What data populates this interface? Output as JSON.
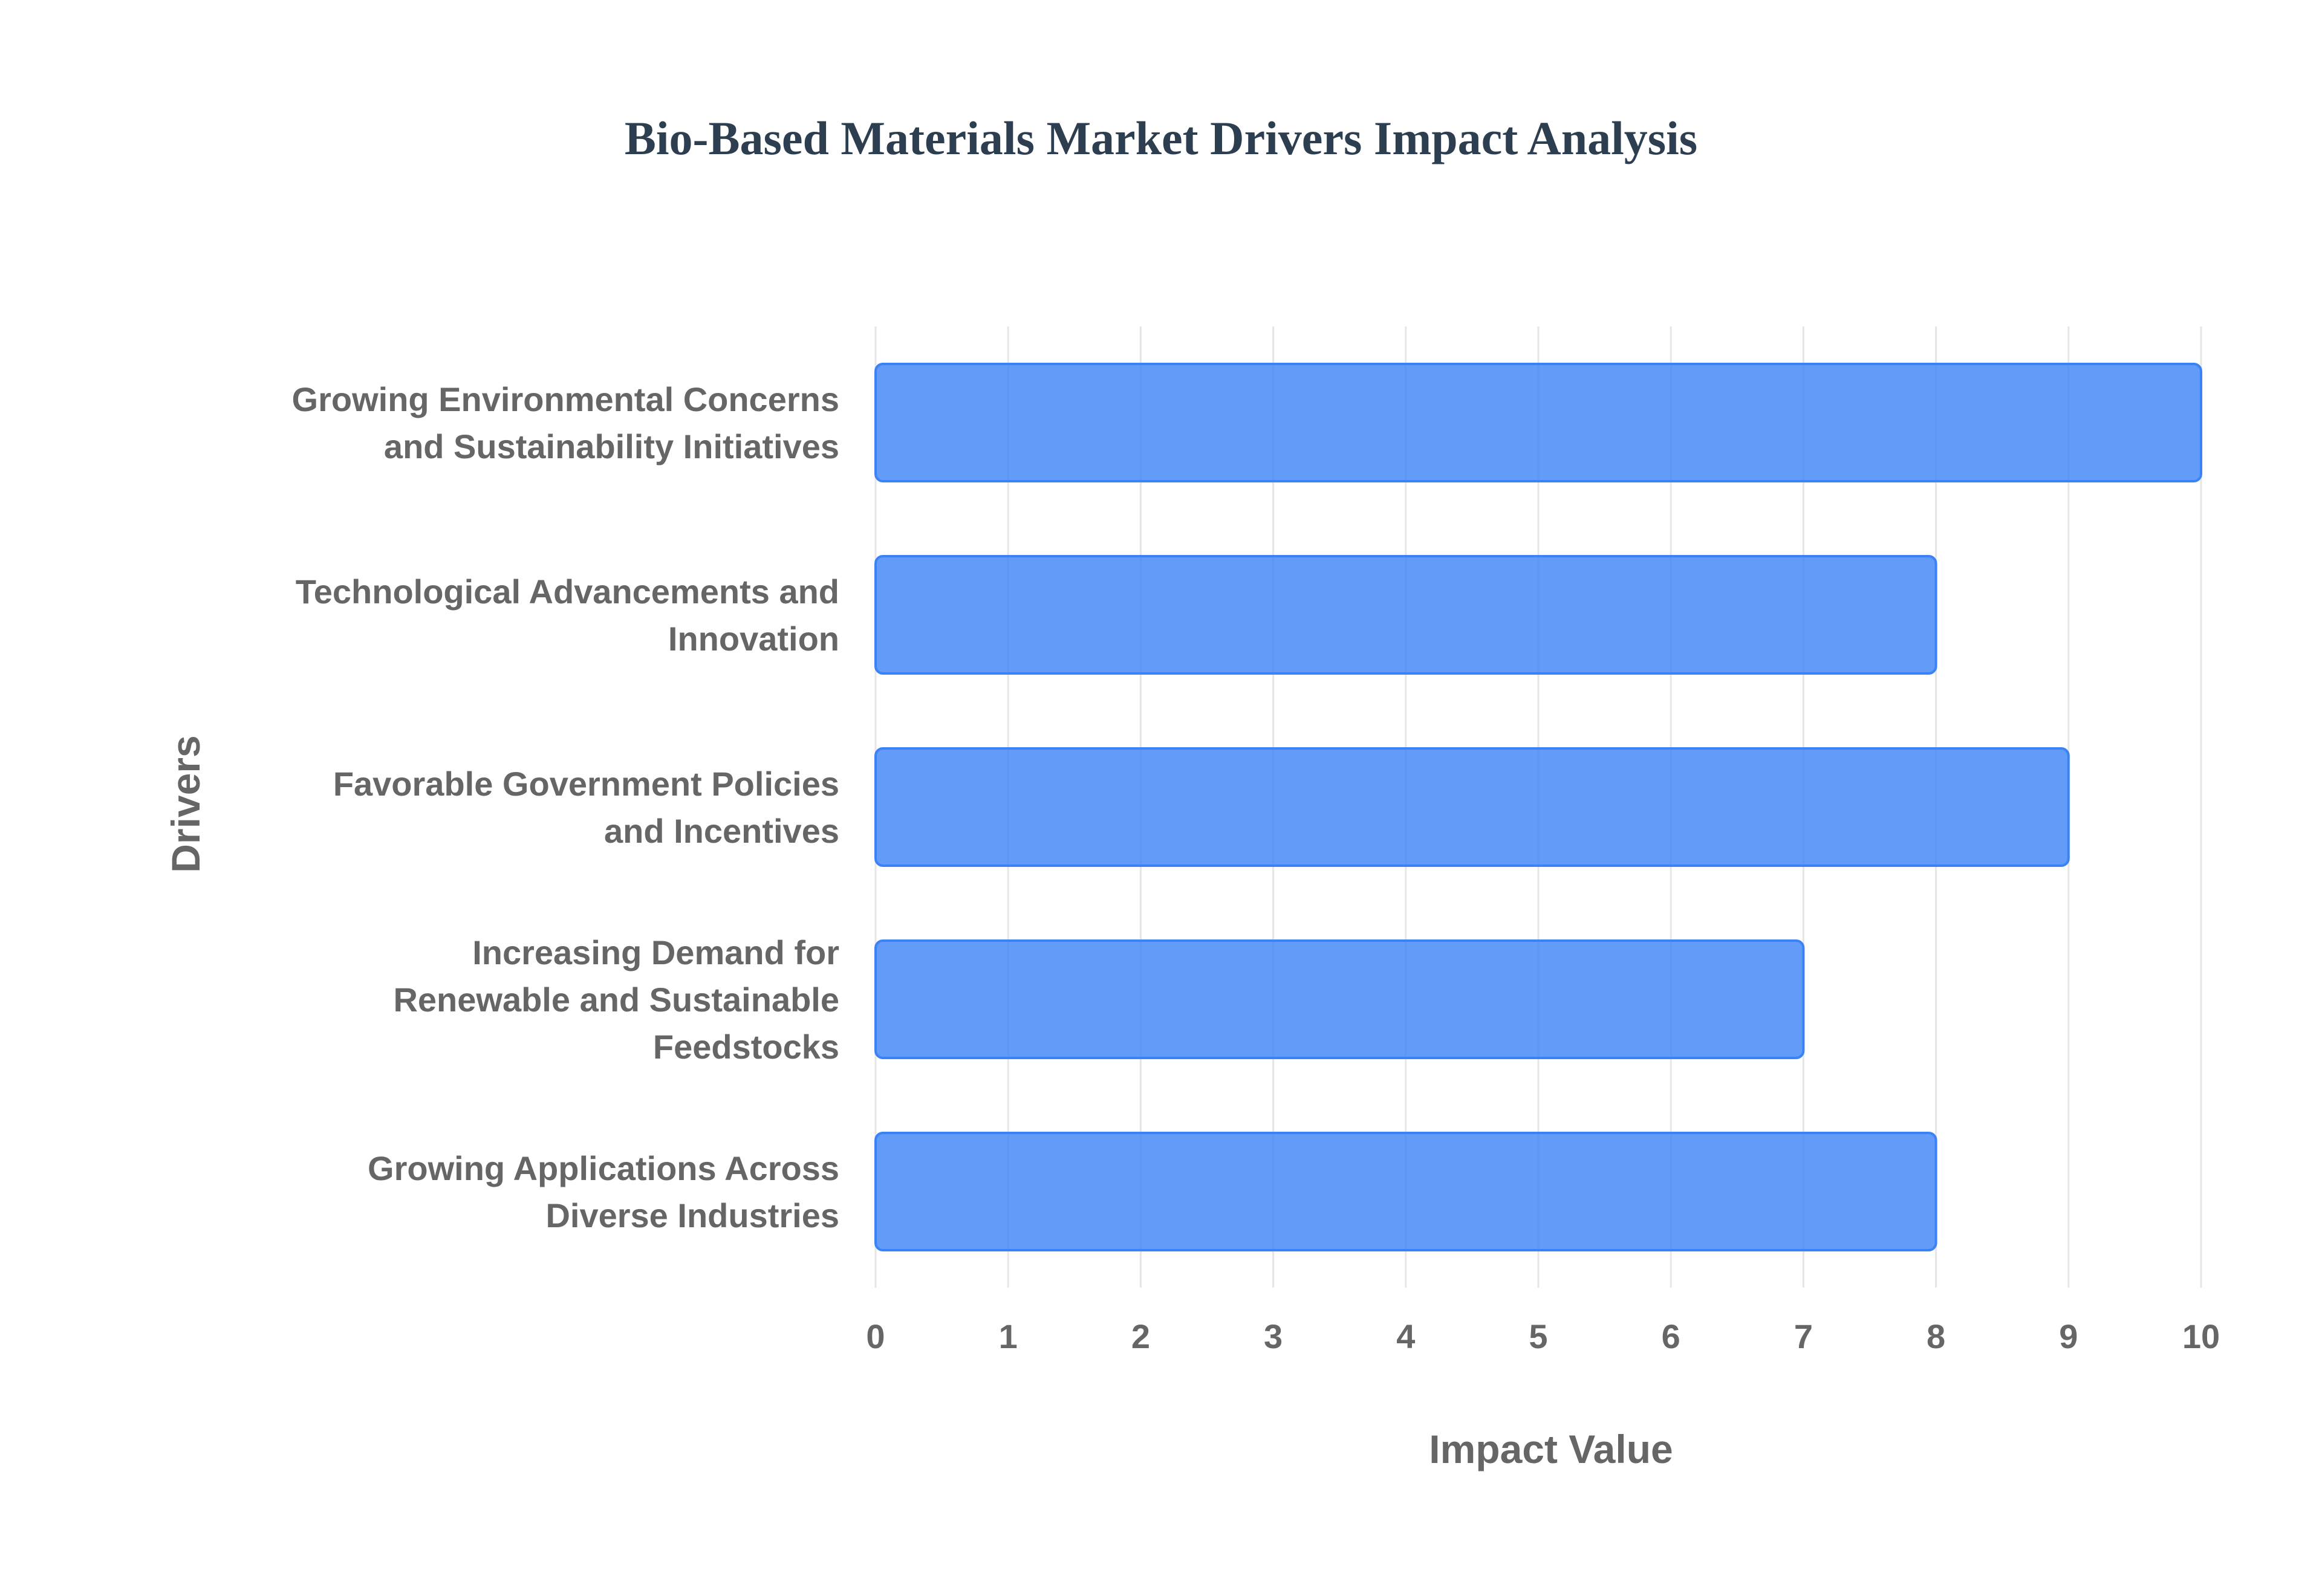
{
  "chart_data": {
    "type": "bar",
    "orientation": "horizontal",
    "title": "Bio-Based Materials Market Drivers Impact Analysis",
    "xlabel": "Impact Value",
    "ylabel": "Drivers",
    "xlim": [
      0,
      10
    ],
    "xticks": [
      "0",
      "1",
      "2",
      "3",
      "4",
      "5",
      "6",
      "7",
      "8",
      "9",
      "10"
    ],
    "grid": true,
    "legend": "none",
    "bar_color": "#3b82f6",
    "categories": [
      [
        "Growing Environmental Concerns",
        "and Sustainability Initiatives"
      ],
      [
        "Technological Advancements and",
        "Innovation"
      ],
      [
        "Favorable Government Policies",
        "and Incentives"
      ],
      [
        "Increasing Demand for",
        "Renewable and Sustainable",
        "Feedstocks"
      ],
      [
        "Growing Applications Across",
        "Diverse Industries"
      ]
    ],
    "values": [
      10,
      8,
      9,
      7,
      8
    ]
  }
}
